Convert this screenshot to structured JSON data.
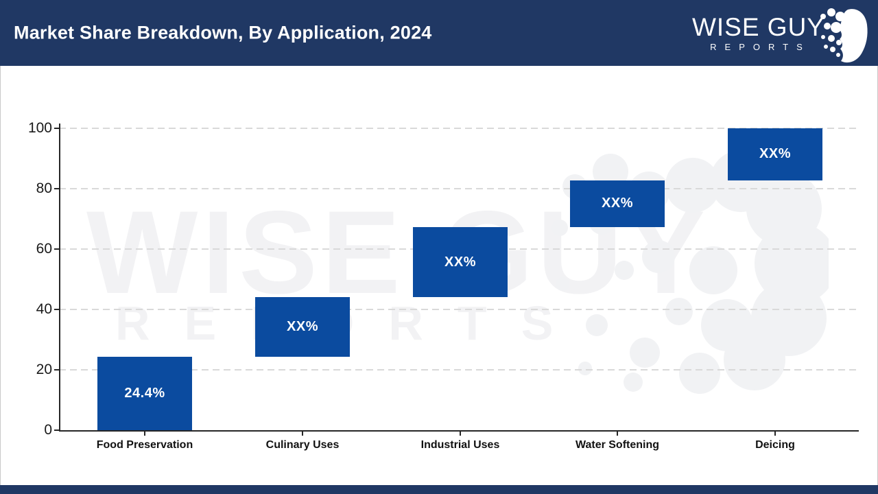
{
  "header": {
    "title": "Market Share Breakdown, By Application, 2024",
    "logo": {
      "line1": "WISE GUY",
      "line2": "REPORTS"
    }
  },
  "watermark": {
    "line1": "WISE GUY",
    "line2": "REPORTS"
  },
  "chart_data": {
    "type": "bar",
    "subtype": "waterfall",
    "title": "Market Share Breakdown, By Application, 2024",
    "categories": [
      "Food Preservation",
      "Culinary Uses",
      "Industrial Uses",
      "Water Softening",
      "Deicing"
    ],
    "segments": [
      [
        0,
        24.4
      ],
      [
        24.4,
        44
      ],
      [
        44,
        67.3
      ],
      [
        67.3,
        82.8
      ],
      [
        82.8,
        100
      ]
    ],
    "bar_labels": [
      "24.4%",
      "XX%",
      "XX%",
      "XX%",
      "XX%"
    ],
    "xlabel": "",
    "ylabel": "",
    "ylim": [
      0,
      100
    ],
    "yticks": [
      0,
      20,
      40,
      60,
      80,
      100
    ],
    "grid": "horizontal-dashed",
    "legend": "none",
    "colors": {
      "bar": "#0B4B9F",
      "header": "#203864",
      "gridline": "#d9d9d9",
      "axis": "#262626",
      "watermark": "#f2f2f4"
    }
  }
}
